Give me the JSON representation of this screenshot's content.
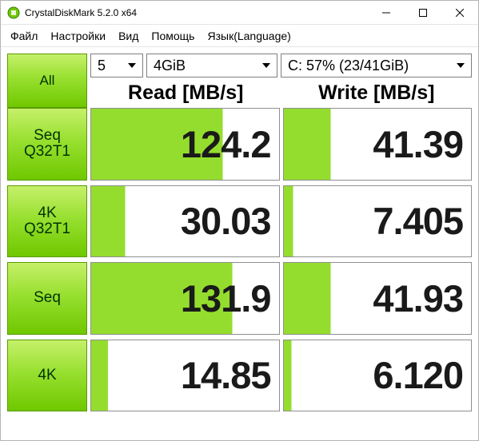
{
  "window": {
    "title": "CrystalDiskMark 5.2.0 x64"
  },
  "menu": {
    "file": "Файл",
    "settings": "Настройки",
    "view": "Вид",
    "help": "Помощь",
    "language": "Язык(Language)"
  },
  "controls": {
    "all_button": "All",
    "count": "5",
    "size": "4GiB",
    "drive": "C: 57% (23/41GiB)"
  },
  "headers": {
    "read": "Read [MB/s]",
    "write": "Write [MB/s]"
  },
  "tests": [
    {
      "label_line1": "Seq",
      "label_line2": "Q32T1",
      "read": "124.2",
      "write": "41.39"
    },
    {
      "label_line1": "4K",
      "label_line2": "Q32T1",
      "read": "30.03",
      "write": "7.405"
    },
    {
      "label_line1": "Seq",
      "label_line2": "",
      "read": "131.9",
      "write": "41.93"
    },
    {
      "label_line1": "4K",
      "label_line2": "",
      "read": "14.85",
      "write": "6.120"
    }
  ],
  "colors": {
    "button_gradient_top": "#c6f06a",
    "button_gradient_mid": "#98e030",
    "button_gradient_bot": "#6fc800",
    "button_border": "#5a9a00",
    "cell_border": "#8f8f8f",
    "cell_fill_base": "#ffffff",
    "cell_fill_tint": "#94dd2e",
    "text_dark": "#1a1a1a",
    "window_border": "#b5b5b5"
  },
  "fill_percent": {
    "rows": [
      {
        "read": 70,
        "write": 25
      },
      {
        "read": 18,
        "write": 5
      },
      {
        "read": 75,
        "write": 25
      },
      {
        "read": 9,
        "write": 4
      }
    ]
  }
}
